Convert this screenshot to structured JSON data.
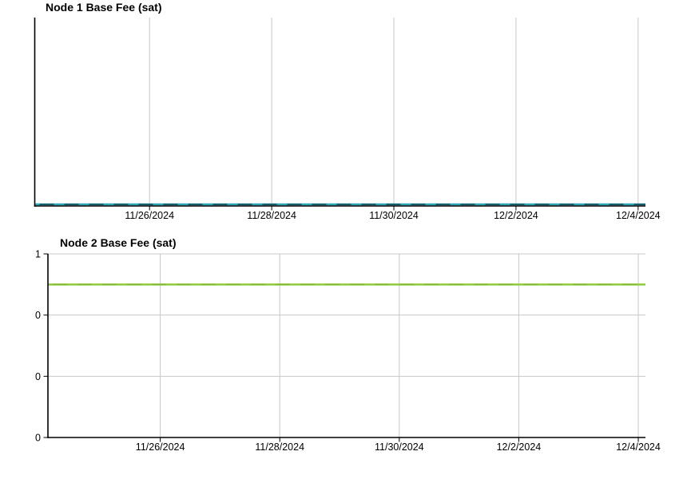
{
  "page": {
    "background_color": "#ffffff"
  },
  "chart_data": [
    {
      "type": "line",
      "title": "Node 1 Base Fee (sat)",
      "x_tick_labels": [
        "11/26/2024",
        "11/28/2024",
        "11/30/2024",
        "12/2/2024",
        "12/4/2024"
      ],
      "y_tick_labels": [],
      "series": [
        {
          "name": "Node 1 Base Fee",
          "constant_value": 0,
          "color": "#2aa5b5",
          "overlay_dash_color": "#0d3340"
        }
      ],
      "ylim": [
        0,
        1
      ],
      "grid": {
        "vertical": true,
        "horizontal": false
      },
      "legend": "none",
      "axis_color": "#000000",
      "gridline_color": "#c8c8c8",
      "xlabel": "",
      "ylabel": ""
    },
    {
      "type": "line",
      "title": "Node 2 Base Fee (sat)",
      "x_tick_labels": [
        "11/26/2024",
        "11/28/2024",
        "11/30/2024",
        "12/2/2024",
        "12/4/2024"
      ],
      "y_tick_labels": [
        "1",
        "0",
        "0",
        "0"
      ],
      "series": [
        {
          "name": "Node 2 Base Fee",
          "constant_value": 1,
          "color": "#8fca3c",
          "overlay_dash_color": "#7db32e"
        }
      ],
      "ylim": [
        0,
        1.2
      ],
      "grid": {
        "vertical": true,
        "horizontal": true
      },
      "legend": "none",
      "axis_color": "#000000",
      "gridline_color": "#c8c8c8",
      "xlabel": "",
      "ylabel": ""
    }
  ]
}
